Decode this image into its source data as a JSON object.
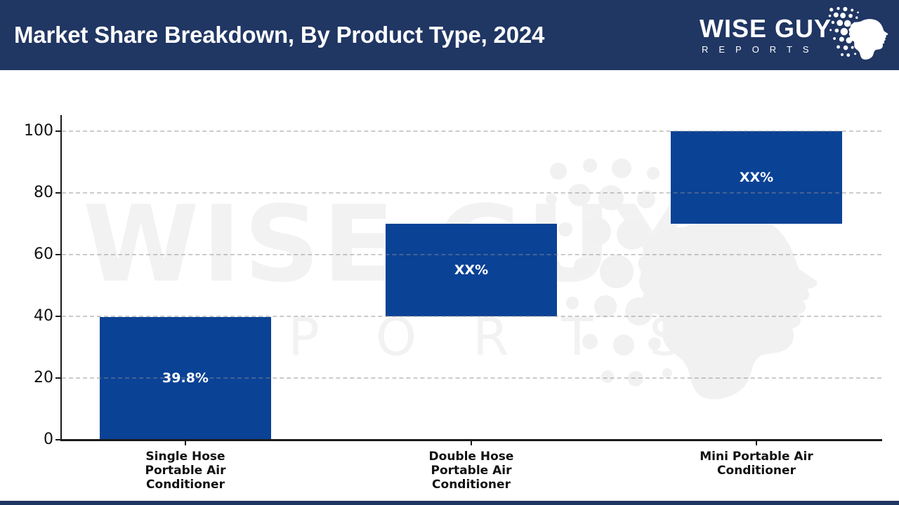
{
  "header": {
    "title": "Market Share Breakdown, By Product Type, 2024",
    "logo": {
      "line1": "WISE GUY",
      "line2": "REPORTS"
    }
  },
  "watermark": {
    "line1": "WISE GUY",
    "line2": "REPORTS"
  },
  "colors": {
    "header_navy": "#203663",
    "footer_navy": "#203663",
    "bar_blue": "#0a4296",
    "bar_label_white": "#ffffff",
    "grid_gray": "#d9d9d9",
    "axis_black": "#1a1a1a",
    "watermark_gray": "#f2f2f2"
  },
  "chart_data": {
    "type": "bar",
    "variant": "waterfall",
    "title": "Market Share Breakdown, By Product Type, 2024",
    "categories": [
      "Single Hose Portable Air Conditioner",
      "Double Hose Portable Air Conditioner",
      "Mini Portable Air Conditioner"
    ],
    "categories_lines": [
      [
        "Single Hose",
        "Portable Air",
        "Conditioner"
      ],
      [
        "Double Hose",
        "Portable Air",
        "Conditioner"
      ],
      [
        "Mini Portable Air",
        "Conditioner"
      ]
    ],
    "segments": [
      {
        "category": "Single Hose Portable Air Conditioner",
        "start": 0,
        "end": 39.8,
        "label": "39.8%"
      },
      {
        "category": "Double Hose Portable Air Conditioner",
        "start": 40,
        "end": 70,
        "label": "XX%"
      },
      {
        "category": "Mini Portable Air Conditioner",
        "start": 70,
        "end": 100,
        "label": "XX%"
      }
    ],
    "yticks": [
      0,
      20,
      40,
      60,
      80,
      100
    ],
    "ylim": [
      0,
      105
    ],
    "xlabel": "",
    "ylabel": "",
    "grid": "horizontal-dashed",
    "legend": "none"
  }
}
